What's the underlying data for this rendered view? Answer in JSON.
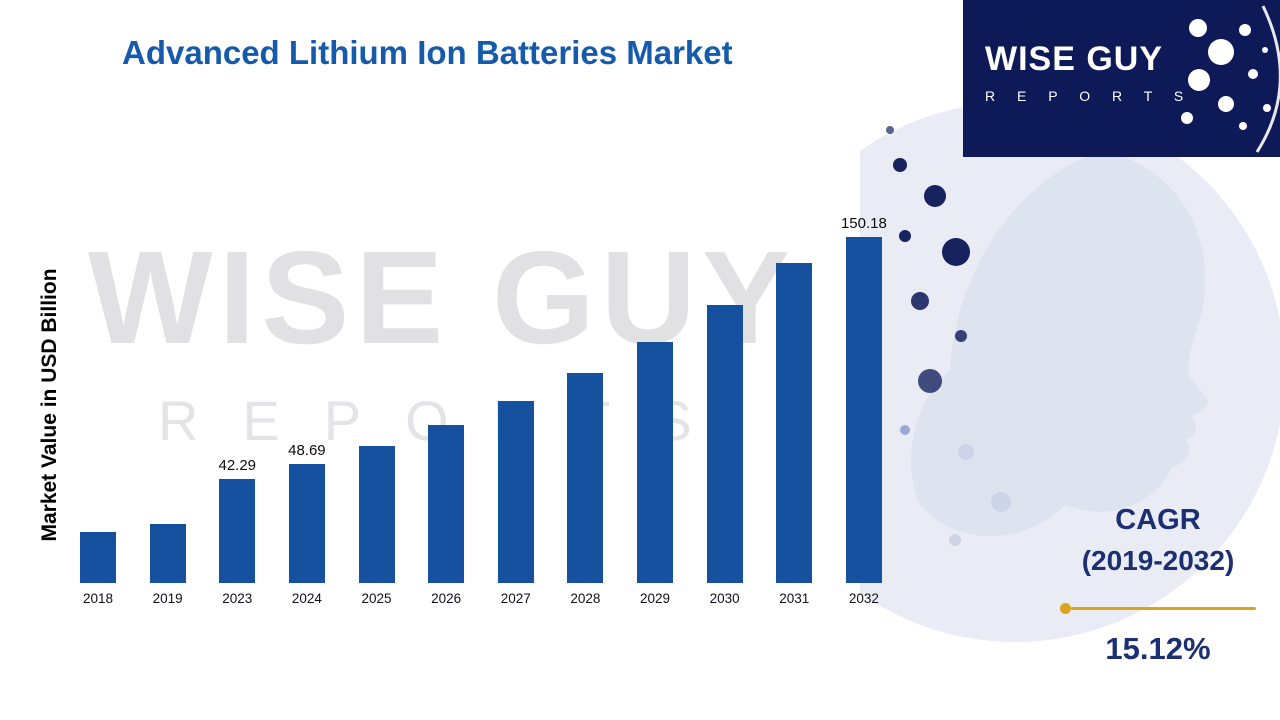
{
  "header": {
    "title": "Advanced Lithium Ion Batteries Market"
  },
  "logo": {
    "name_line": "WISE GUY",
    "sub_line": "R E P O R T S"
  },
  "watermark": {
    "line1": "WISE GUY",
    "line2": "REPORTS"
  },
  "cagr": {
    "label": "CAGR",
    "range": "(2019-2032)",
    "value": "15.12%"
  },
  "colors": {
    "title_blue": "#155aab",
    "bar_blue": "#15519f",
    "navy_block": "#0e1a57",
    "cagr_navy": "#1b2f72",
    "gold_accent": "#d9a521",
    "watermark_gray": "#c9c9ce"
  },
  "chart_data": {
    "type": "bar",
    "title": "Advanced Lithium Ion Batteries Market",
    "ylabel": "Market Value in USD Billion",
    "xlabel": "",
    "categories": [
      "2018",
      "2019",
      "2023",
      "2024",
      "2025",
      "2026",
      "2027",
      "2028",
      "2029",
      "2030",
      "2031",
      "2032"
    ],
    "values": [
      20.9,
      24.1,
      42.29,
      48.69,
      56.05,
      64.52,
      74.28,
      85.51,
      98.44,
      113.32,
      130.46,
      150.18
    ],
    "data_labels": [
      "",
      "",
      "42.29",
      "48.69",
      "",
      "",
      "",
      "",
      "",
      "",
      "",
      "150.18"
    ],
    "ylim": [
      0,
      160
    ],
    "bar_color": "#15519f",
    "grid": false,
    "legend": false
  }
}
